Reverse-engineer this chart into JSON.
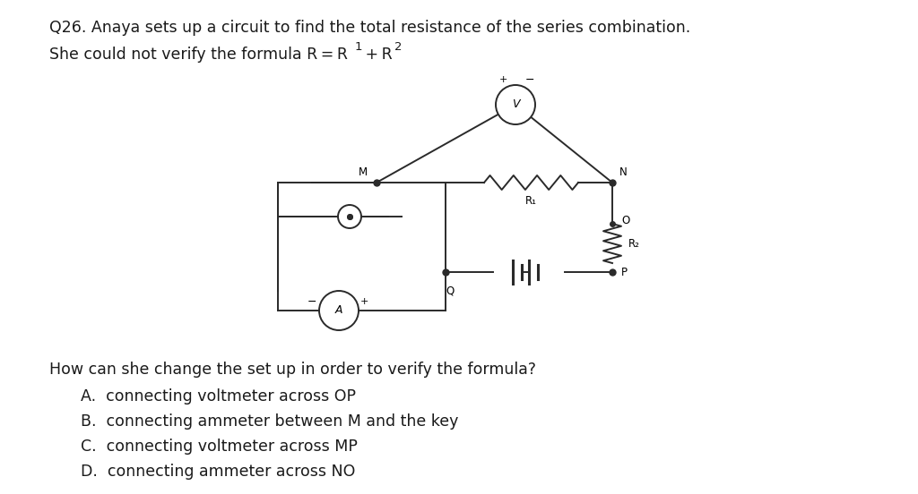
{
  "title_line1": "Q26. Anaya sets up a circuit to find the total resistance of the series combination.",
  "title_line2_prefix": "She could not verify the formula R = R",
  "title_line2_sub1": "1",
  "title_line2_mid": " + R",
  "title_line2_sub2": "2",
  "question": "How can she change the set up in order to verify the formula?",
  "options": [
    "A.  connecting voltmeter across OP",
    "B.  connecting ammeter between M and the key",
    "C.  connecting voltmeter across MP",
    "D.  connecting ammeter across NO"
  ],
  "bg_color": "#ffffff",
  "text_color": "#1a1a1a",
  "circuit_color": "#2a2a2a",
  "font_size_title": 12.5,
  "font_size_options": 12.5,
  "font_size_circuit": 8.5
}
